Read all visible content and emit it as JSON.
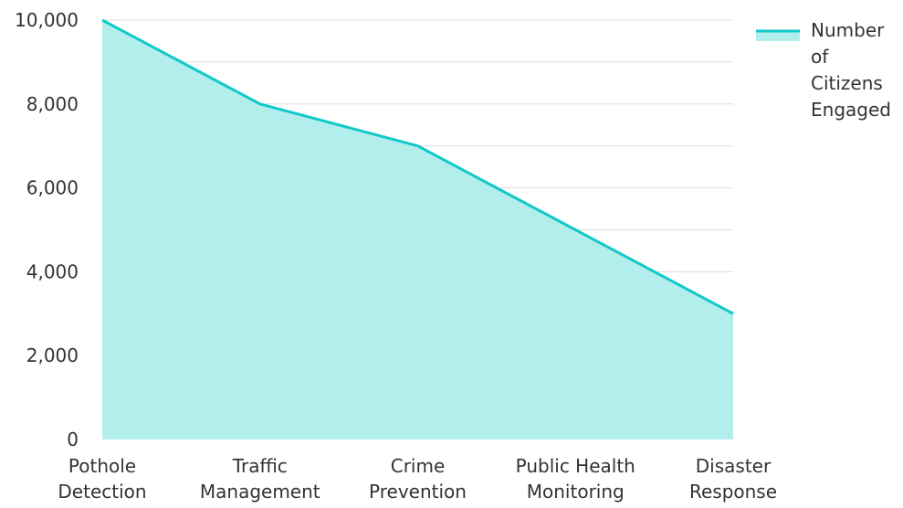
{
  "chart_data": {
    "type": "area",
    "categories": [
      "Pothole Detection",
      "Traffic Management",
      "Crime Prevention",
      "Public Health Monitoring",
      "Disaster Response"
    ],
    "category_label_lines": [
      [
        "Pothole",
        "Detection"
      ],
      [
        "Traffic",
        "Management"
      ],
      [
        "Crime",
        "Prevention"
      ],
      [
        "Public Health",
        "Monitoring"
      ],
      [
        "Disaster",
        "Response"
      ]
    ],
    "series": [
      {
        "name": "Number of Citizens Engaged",
        "values": [
          10000,
          8000,
          7000,
          5000,
          3000
        ],
        "line_color": "#12C8C8",
        "fill_color": "#B2EEEC"
      }
    ],
    "ylim": [
      0,
      10000
    ],
    "y_ticks": [
      0,
      2000,
      4000,
      6000,
      8000,
      10000
    ],
    "y_tick_labels": [
      "0",
      "2,000",
      "4,000",
      "6,000",
      "8,000",
      "10,000"
    ],
    "grid": true,
    "grid_color": "#DDDDDD",
    "legend": {
      "position": "top-right",
      "label_lines": [
        "Number",
        "of",
        "Citizens",
        "Engaged"
      ]
    },
    "title": "",
    "xlabel": "",
    "ylabel": ""
  }
}
